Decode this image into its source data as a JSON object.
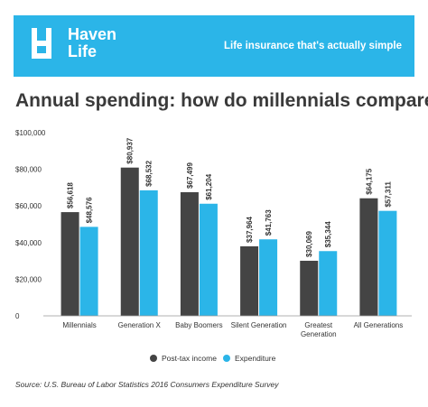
{
  "header": {
    "brand_line1": "Haven",
    "brand_line2": "Life",
    "tagline": "Life insurance that's actually simple",
    "background_color": "#2bb5e8"
  },
  "title": "Annual spending: how do millennials compare?",
  "source": "Source: U.S. Bureau of Labor Statistics 2016 Consumers Expenditure Survey",
  "chart_data": {
    "type": "bar",
    "categories": [
      "Millennials",
      "Generation X",
      "Baby Boomers",
      "Silent Generation",
      "Greatest Generation",
      "All Generations"
    ],
    "category_lines": [
      [
        "Millennials"
      ],
      [
        "Generation X"
      ],
      [
        "Baby Boomers"
      ],
      [
        "Silent Generation"
      ],
      [
        "Greatest",
        "Generation"
      ],
      [
        "All Generations"
      ]
    ],
    "series": [
      {
        "name": "Post-tax income",
        "color": "#444444",
        "values": [
          56618,
          80937,
          67499,
          37964,
          30069,
          64175
        ],
        "labels": [
          "$56,618",
          "$80,937",
          "$67,499",
          "$37,964",
          "$30,069",
          "$64,175"
        ]
      },
      {
        "name": "Expenditure",
        "color": "#2bb5e8",
        "values": [
          48576,
          68532,
          61204,
          41763,
          35344,
          57311
        ],
        "labels": [
          "$48,576",
          "$68,532",
          "$61,204",
          "$41,763",
          "$35,344",
          "$57,311"
        ]
      }
    ],
    "ylim": [
      0,
      100000
    ],
    "yticks": [
      0,
      20000,
      40000,
      60000,
      80000,
      100000
    ],
    "ytick_labels": [
      "0",
      "$20,000",
      "$40,000",
      "$60,000",
      "$80,000",
      "$100,000"
    ],
    "grid": false,
    "legend_position": "bottom-center"
  }
}
